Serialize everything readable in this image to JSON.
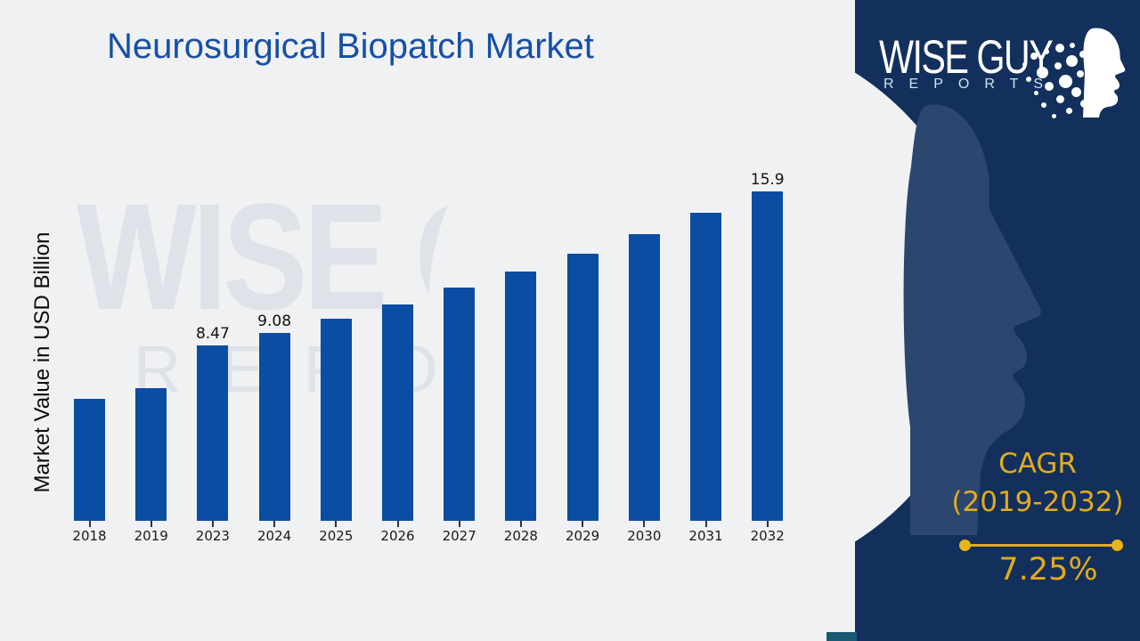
{
  "title": "Neurosurgical Biopatch Market",
  "watermark": {
    "line1": "WISE GUY",
    "line2": "REPORTS",
    "icon": "face-profile-dots-watermark"
  },
  "logo": {
    "line1": "WISE GUY",
    "line2": "REPORTS",
    "icon": "face-profile-dots-icon"
  },
  "cagr": {
    "heading": "CAGR",
    "range": "(2019-2032)",
    "value": "7.25%"
  },
  "chart_data": {
    "type": "bar",
    "title": "Neurosurgical Biopatch Market",
    "xlabel": "",
    "ylabel": "Market Value in USD Billion",
    "categories": [
      "2018",
      "2019",
      "2023",
      "2024",
      "2025",
      "2026",
      "2027",
      "2028",
      "2029",
      "2030",
      "2031",
      "2032"
    ],
    "values": [
      5.9,
      6.4,
      8.47,
      9.08,
      9.75,
      10.45,
      11.25,
      12.05,
      12.9,
      13.85,
      14.85,
      15.9
    ],
    "value_labels": [
      "",
      "",
      "8.47",
      "9.08",
      "",
      "",
      "",
      "",
      "",
      "",
      "",
      "15.9"
    ],
    "ylim": [
      0,
      16.5
    ],
    "grid": false,
    "legend": "none",
    "bar_color": "#0b4da2"
  },
  "colors": {
    "background": "#f0f1f3",
    "bar": "#0b4da2",
    "title_blue": "#1650a4",
    "navy_panel": "#132f5c",
    "gold_accent": "#e2ab1c",
    "teal_accent": "#1a5874",
    "watermark_gray": "#dfe2e8",
    "watermark_dots_gray": "#d2d6de",
    "face_muted_navy": "#2b466f"
  }
}
